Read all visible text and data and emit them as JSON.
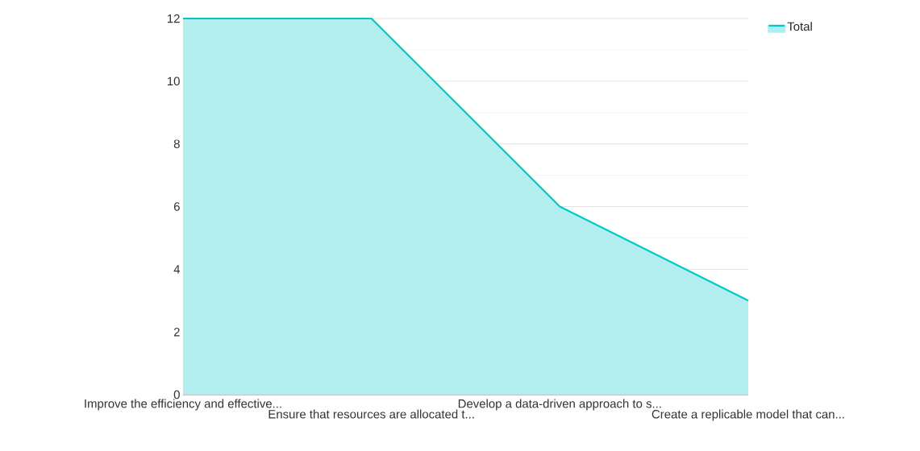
{
  "chart_data": {
    "type": "area",
    "categories": [
      "Improve the efficiency and effective...",
      "Ensure that resources are allocated t...",
      "Develop a data-driven approach to s...",
      "Create a replicable model that can..."
    ],
    "series": [
      {
        "name": "Total",
        "color": "#00c8c8",
        "values": [
          12,
          12,
          6,
          3
        ]
      }
    ],
    "ylim": [
      0,
      12
    ],
    "yticks": [
      0,
      2,
      4,
      6,
      8,
      10,
      12
    ],
    "grid": "y",
    "legend": "top right"
  }
}
